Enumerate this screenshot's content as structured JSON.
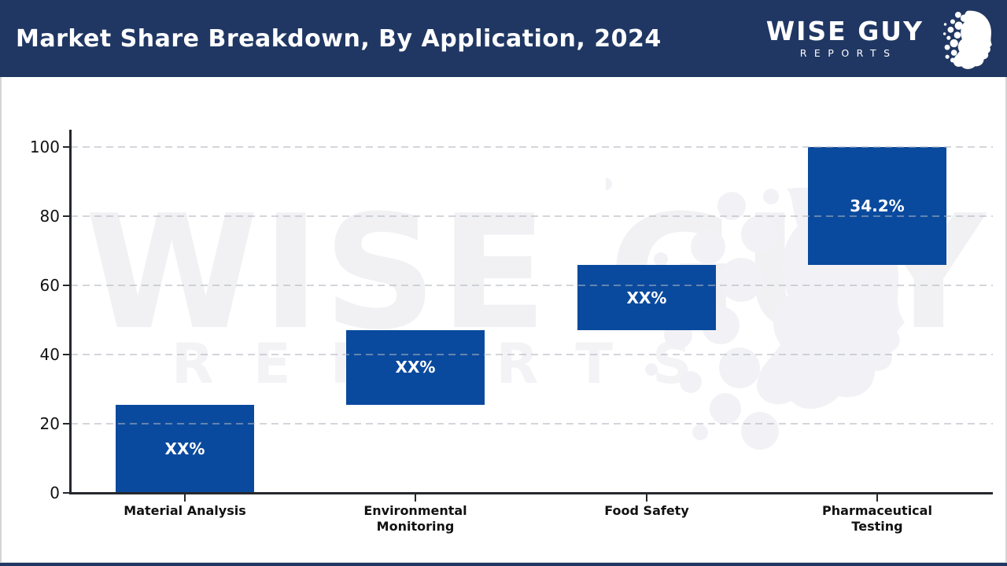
{
  "header": {
    "title": "Market Share Breakdown, By Application, 2024",
    "logo": {
      "line1": "WISE GUY",
      "line2": "REPORTS"
    }
  },
  "watermark": {
    "line1": "WISE GUY",
    "line2": "REPORTS"
  },
  "chart_data": {
    "type": "bar",
    "subtype": "floating-waterfall",
    "title": "Market Share Breakdown, By Application, 2024",
    "xlabel": "",
    "ylabel": "",
    "ylim": [
      0,
      100
    ],
    "yticks": [
      0,
      20,
      40,
      60,
      80,
      100
    ],
    "grid": "dashed-horizontal",
    "legend": "none",
    "categories": [
      "Material Analysis",
      "Environmental Monitoring",
      "Food Safety",
      "Pharmaceutical Testing"
    ],
    "segments": [
      {
        "category": "Material Analysis",
        "start": 0,
        "end": 25.5,
        "label": "XX%"
      },
      {
        "category": "Environmental Monitoring",
        "start": 25.5,
        "end": 47.1,
        "label": "XX%"
      },
      {
        "category": "Food Safety",
        "start": 47.1,
        "end": 65.8,
        "label": "XX%"
      },
      {
        "category": "Pharmaceutical Testing",
        "start": 65.8,
        "end": 100,
        "label": "34.2%"
      }
    ],
    "values": [
      25.5,
      21.6,
      18.7,
      34.2
    ],
    "displayed_labels": [
      "XX%",
      "XX%",
      "XX%",
      "34.2%"
    ],
    "bar_color": "#0a4a9e",
    "bar_label_color": "#ffffff"
  },
  "colors": {
    "header_bg": "#203763",
    "bar": "#0a4a9e",
    "axis": "#25282d",
    "grid": "#d9d9d9",
    "watermark": "#f1f1f4",
    "footer_strip": "#203763"
  }
}
